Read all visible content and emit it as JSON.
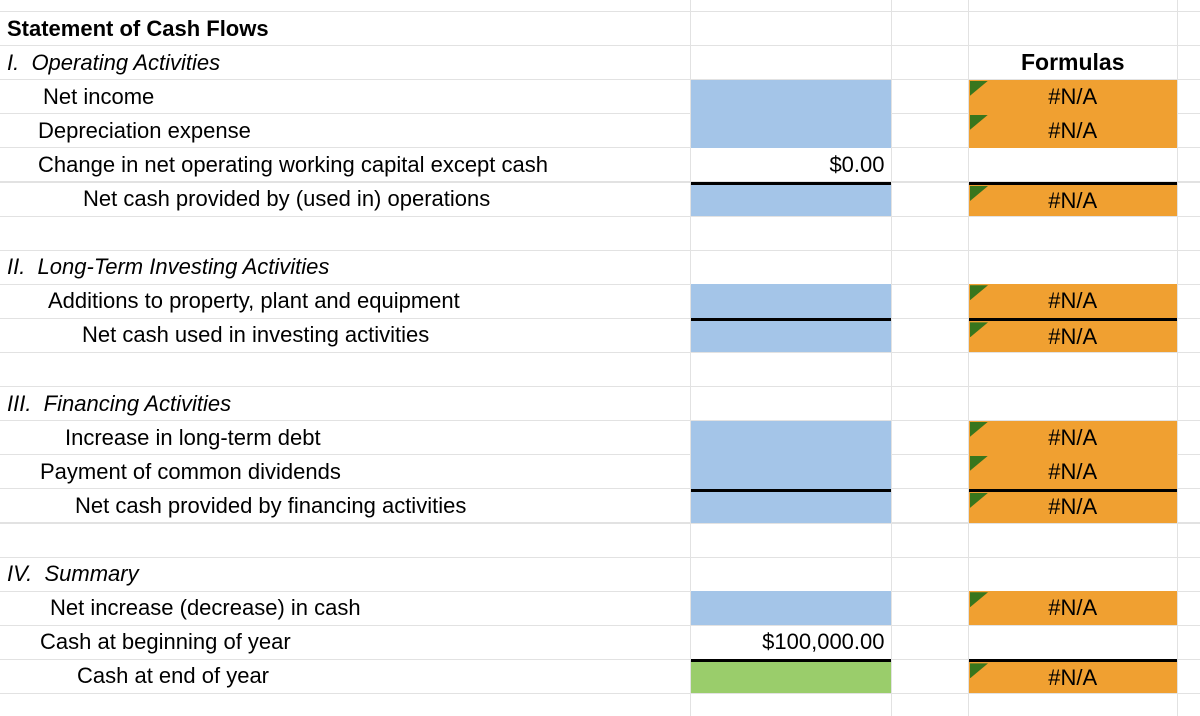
{
  "app": "spreadsheet",
  "title": "Statement of Cash Flows",
  "icons": {
    "error_flag": "green-corner-triangle"
  },
  "colors": {
    "input_fill": "#a4c5e8",
    "result_fill": "#9acd6b",
    "error_fill": "#f0a031",
    "flag_green": "#38761d",
    "gridline": "#e2e2e2",
    "sum_border": "#000000"
  },
  "rows": [
    {
      "style": "title",
      "label": "Statement of Cash Flows",
      "indent": 7
    },
    {
      "style": "section",
      "label": "I.  Operating Activities",
      "indent": 7,
      "formula": {
        "header": "Formulas"
      }
    },
    {
      "style": "item",
      "label": "Net income",
      "indent": 43,
      "value": {
        "fill": "input"
      },
      "formula": {
        "fill": "error",
        "text": "#N/A",
        "flag": true
      }
    },
    {
      "style": "item",
      "label": "Depreciation expense",
      "indent": 38,
      "value": {
        "fill": "input"
      },
      "formula": {
        "fill": "error",
        "text": "#N/A",
        "flag": true
      }
    },
    {
      "style": "item",
      "label": "Change in net operating working capital except cash",
      "indent": 38,
      "value": {
        "text": "$0.00"
      }
    },
    {
      "style": "item",
      "label": "Net cash provided by (used in) operations",
      "indent": 83,
      "value": {
        "fill": "input",
        "border_top": true
      },
      "formula": {
        "fill": "error",
        "text": "#N/A",
        "flag": true,
        "border_top": true
      }
    },
    {
      "style": "blank"
    },
    {
      "style": "section",
      "label": "II.  Long-Term Investing Activities",
      "indent": 7
    },
    {
      "style": "item",
      "label": "Additions to property, plant and equipment",
      "indent": 48,
      "value": {
        "fill": "input"
      },
      "formula": {
        "fill": "error",
        "text": "#N/A",
        "flag": true
      }
    },
    {
      "style": "item",
      "label": "Net cash used in investing activities",
      "indent": 82,
      "value": {
        "fill": "input",
        "border_top": true
      },
      "formula": {
        "fill": "error",
        "text": "#N/A",
        "flag": true,
        "border_top": true
      }
    },
    {
      "style": "blank"
    },
    {
      "style": "section",
      "label": "III.  Financing Activities",
      "indent": 7
    },
    {
      "style": "item",
      "label": "Increase in long-term debt",
      "indent": 65,
      "value": {
        "fill": "input"
      },
      "formula": {
        "fill": "error",
        "text": "#N/A",
        "flag": true
      }
    },
    {
      "style": "item",
      "label": "Payment of common dividends",
      "indent": 40,
      "value": {
        "fill": "input"
      },
      "formula": {
        "fill": "error",
        "text": "#N/A",
        "flag": true
      }
    },
    {
      "style": "item",
      "label": "Net cash provided by financing activities",
      "indent": 75,
      "value": {
        "fill": "input",
        "border_top": true
      },
      "formula": {
        "fill": "error",
        "text": "#N/A",
        "flag": true,
        "border_top": true
      }
    },
    {
      "style": "blank"
    },
    {
      "style": "section",
      "label": "IV.  Summary",
      "indent": 7
    },
    {
      "style": "item",
      "label": "Net increase (decrease) in cash",
      "indent": 50,
      "value": {
        "fill": "input"
      },
      "formula": {
        "fill": "error",
        "text": "#N/A",
        "flag": true
      }
    },
    {
      "style": "item",
      "label": "Cash at beginning of year",
      "indent": 40,
      "value": {
        "text": "$100,000.00"
      }
    },
    {
      "style": "item",
      "label": "Cash at end of year",
      "indent": 77,
      "value": {
        "fill": "result",
        "border_top": true
      },
      "formula": {
        "fill": "error",
        "text": "#N/A",
        "flag": true,
        "border_top": true
      }
    },
    {
      "style": "blank"
    }
  ]
}
